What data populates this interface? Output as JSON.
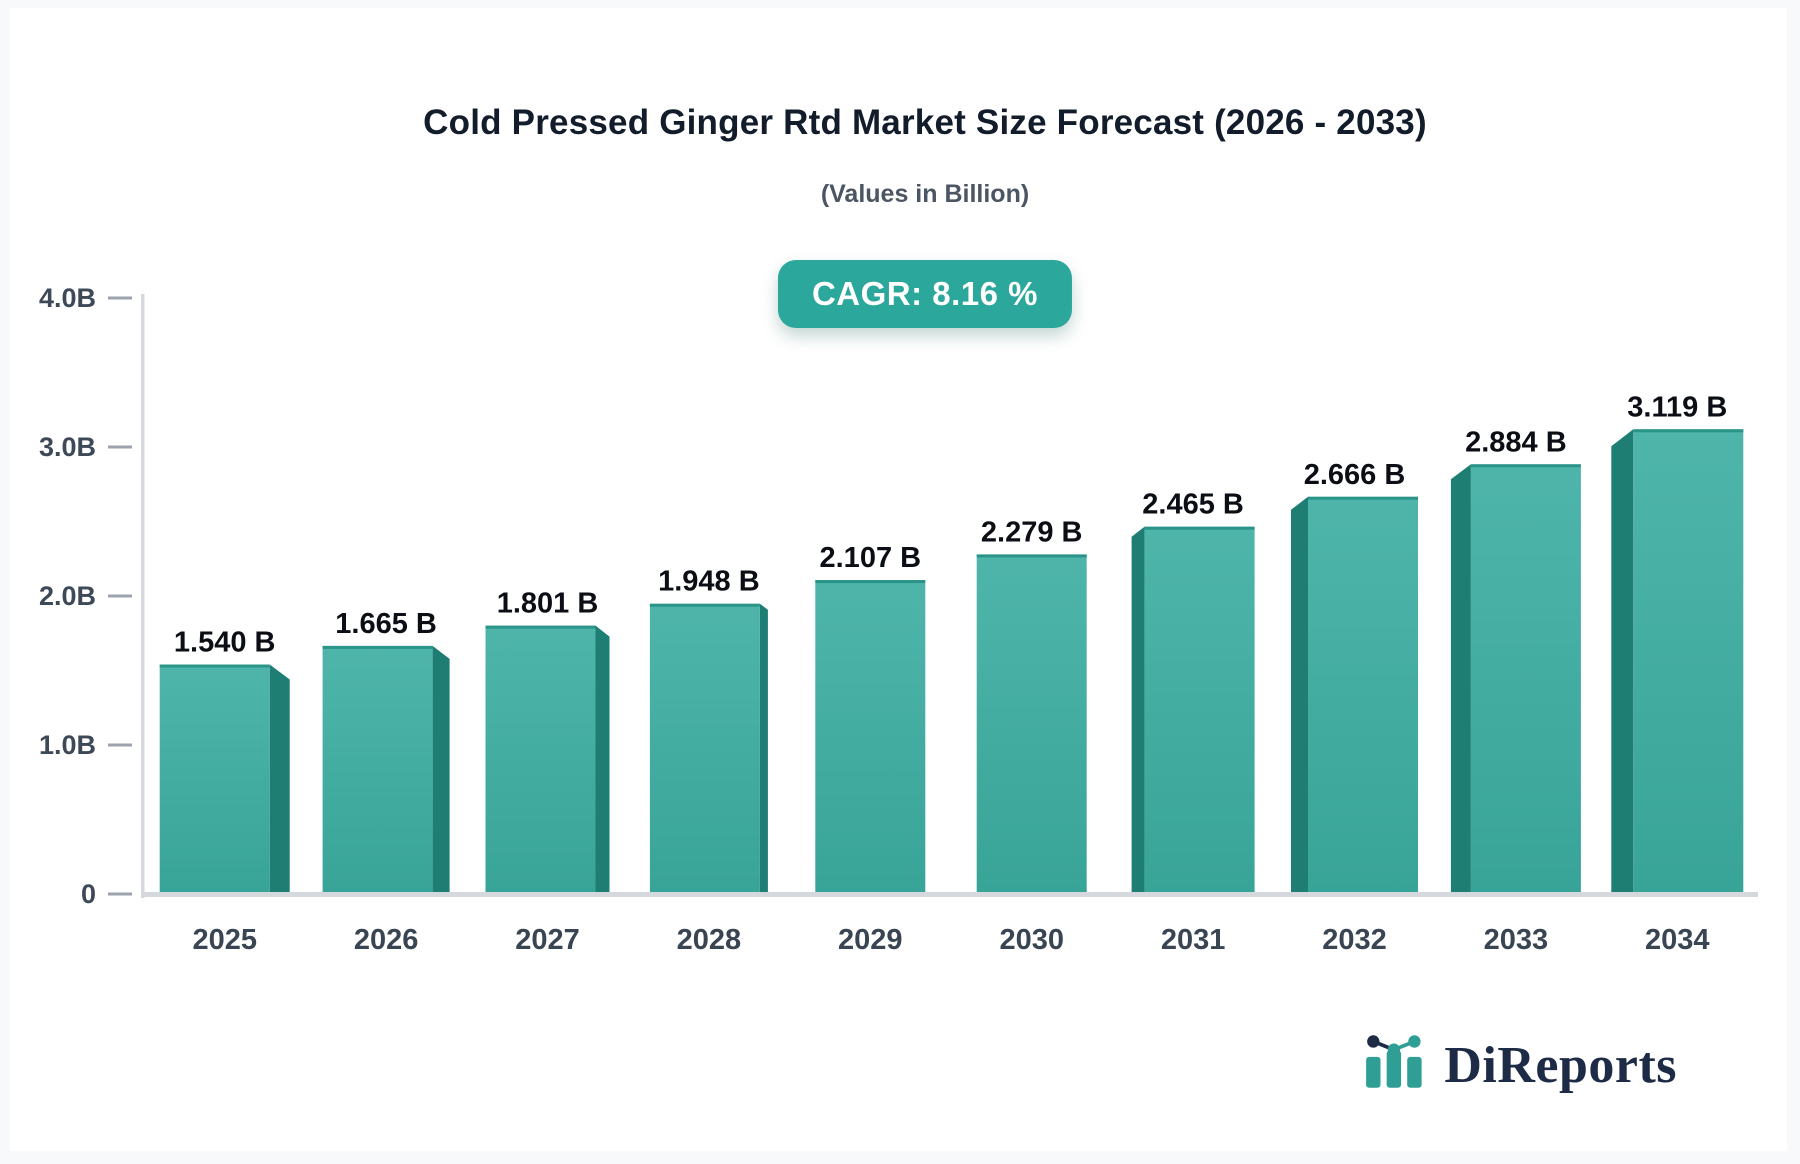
{
  "page": {
    "background": "#f7f9fb",
    "canvas_background": "#ffffff"
  },
  "header": {
    "title": "Cold Pressed Ginger Rtd Market Size Forecast (2026 - 2033)",
    "subtitle": "(Values in Billion)"
  },
  "badge": {
    "label": "CAGR: 8.16 %",
    "background": "#2BA79B",
    "text_color": "#FFFFFF"
  },
  "chart_data": {
    "type": "bar",
    "title": "Cold Pressed Ginger Rtd Market Size Forecast (2026 - 2033)",
    "subtitle": "(Values in Billion)",
    "cagr_percent": 8.16,
    "categories": [
      "2025",
      "2026",
      "2027",
      "2028",
      "2029",
      "2030",
      "2031",
      "2032",
      "2033",
      "2034"
    ],
    "values": [
      1.54,
      1.665,
      1.801,
      1.948,
      2.107,
      2.279,
      2.465,
      2.666,
      2.884,
      3.119
    ],
    "bar_value_labels": [
      "1.540 B",
      "1.665 B",
      "1.801 B",
      "1.948 B",
      "2.107 B",
      "2.279 B",
      "2.465 B",
      "2.666 B",
      "2.884 B",
      "3.119 B"
    ],
    "xlabel": "",
    "ylabel": "",
    "ylim": [
      0,
      4
    ],
    "yticks": [
      {
        "label": "4.0B",
        "value": 4.0
      },
      {
        "label": "3.0B",
        "value": 3.0
      },
      {
        "label": "2.0B",
        "value": 2.0
      },
      {
        "label": "1.0B",
        "value": 1.0
      },
      {
        "label": "0",
        "value": 0.0
      }
    ],
    "grid": false,
    "legend": false,
    "colors": {
      "bar_face_top": "#4FB5AB",
      "bar_face_bottom": "#38A497",
      "bar_side": "#1E7E73",
      "bar_top_edge": "#2B9488",
      "axis": "#D5D8DC",
      "tick": "#9CA3AD",
      "y_label": "#3E4957",
      "x_label": "#3A4553",
      "value_label": "#0B0E14"
    }
  },
  "logo": {
    "text": "DiReports",
    "icon": "mini-bar-chart-icon",
    "navy": "#1D2B47",
    "teal": "#2F9E94"
  }
}
